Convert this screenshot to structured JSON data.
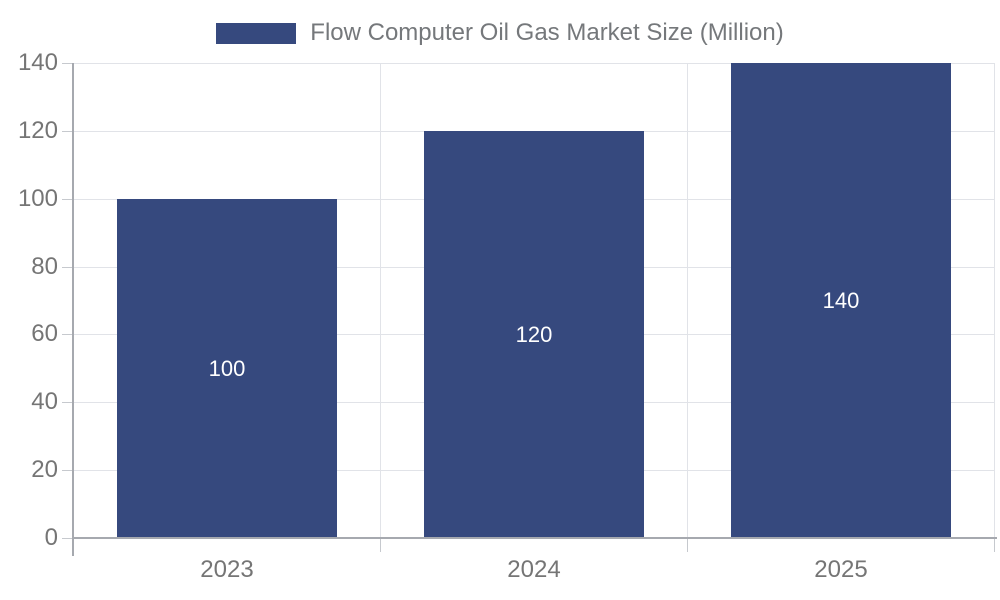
{
  "legend": {
    "label": "Flow Computer Oil Gas Market Size (Million)"
  },
  "colors": {
    "bar": "#36497E",
    "bar_label": "#FFFFFF",
    "legend_text": "#75787B",
    "axis_label": "#757575",
    "grid_line": "#E1E3E8",
    "axis_line": "#A6A9AF",
    "tick_line": "#C6C9CE",
    "background": "#FFFFFF"
  },
  "chart_data": {
    "type": "bar",
    "title": "",
    "series_name": "Flow Computer Oil Gas Market Size (Million)",
    "categories": [
      "2023",
      "2024",
      "2025"
    ],
    "values": [
      100,
      120,
      140
    ],
    "bar_labels": [
      "100",
      "120",
      "140"
    ],
    "yticks": [
      0,
      20,
      40,
      60,
      80,
      100,
      120,
      140
    ],
    "ylim": [
      0,
      140
    ],
    "xlabel": "",
    "ylabel": "",
    "grid": true,
    "legend_position": "top-center",
    "bar_width_fraction": 0.717
  }
}
